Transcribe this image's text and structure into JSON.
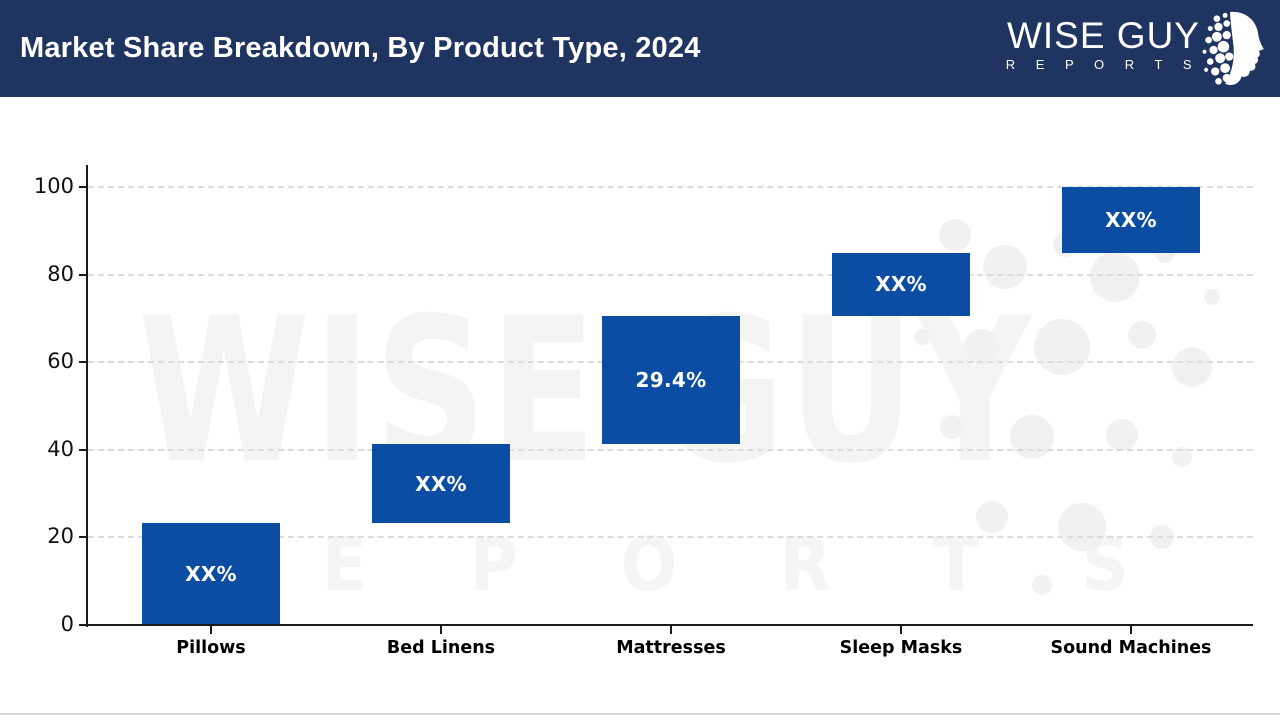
{
  "header": {
    "title": "Market Share Breakdown, By Product Type, 2024",
    "logo": {
      "wordmark": "WISE GUY",
      "subtext": "R E P O R T S"
    }
  },
  "watermark": {
    "wordmark": "WISE GUY",
    "subtext": "R E P O R T S"
  },
  "colors": {
    "header_bg": "#1f3461",
    "bar": "#0b4da2",
    "bar_label": "#ffffff",
    "axis": "#1a1a1a",
    "gridline": "#dcdcdc"
  },
  "chart_data": {
    "type": "bar",
    "variant": "waterfall",
    "title": "Market Share Breakdown, By Product Type, 2024",
    "xlabel": "",
    "ylabel": "",
    "categories": [
      "Pillows",
      "Bed Linens",
      "Mattresses",
      "Sleep Masks",
      "Sound Machines"
    ],
    "segments": [
      {
        "category": "Pillows",
        "start": 0,
        "end": 23.3,
        "label": "XX%"
      },
      {
        "category": "Bed Linens",
        "start": 23.3,
        "end": 41.3,
        "label": "XX%"
      },
      {
        "category": "Mattresses",
        "start": 41.3,
        "end": 70.7,
        "label": "29.4%"
      },
      {
        "category": "Sleep Masks",
        "start": 70.7,
        "end": 84.9,
        "label": "XX%"
      },
      {
        "category": "Sound Machines",
        "start": 84.9,
        "end": 100.0,
        "label": "XX%"
      }
    ],
    "yticks": [
      0,
      20,
      40,
      60,
      80,
      100
    ],
    "ylim": [
      0,
      105
    ],
    "grid": "horizontal-dashed",
    "legend": "none"
  }
}
